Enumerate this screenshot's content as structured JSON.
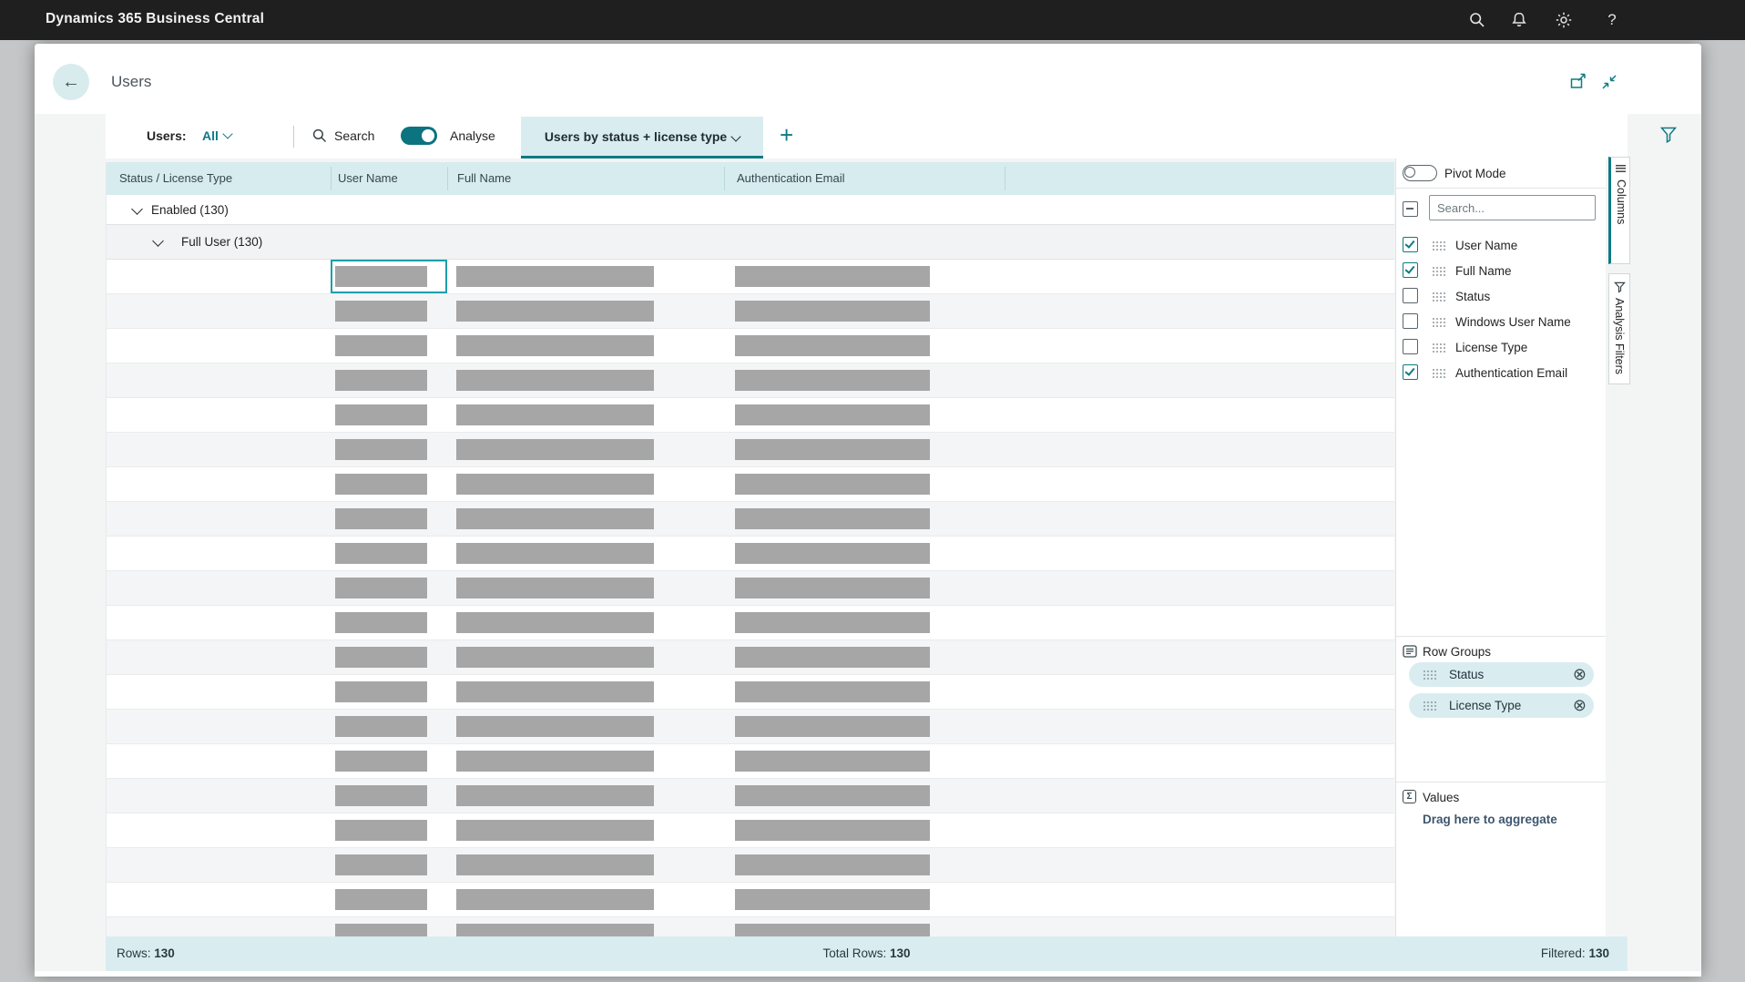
{
  "colors": {
    "accent": "#0e7a84",
    "accent_light": "#d9edf0",
    "topbar_bg": "#1f1f1f",
    "selection_border": "#1d9faa",
    "placeholder_bar": "#a6a6a6"
  },
  "icons": {
    "back": "←",
    "remove": "⊗",
    "sigma": "Σ"
  },
  "topbar": {
    "title": "Dynamics 365 Business Central"
  },
  "page": {
    "title": "Users"
  },
  "toolbar": {
    "scope_label": "Users:",
    "scope_value": "All",
    "search_label": "Search",
    "analyze_label": "Analyse",
    "analysis_tab_label": "Users by status + license type",
    "add_tab_label": "+"
  },
  "table": {
    "columns": [
      "Status / License Type",
      "User Name",
      "Full Name",
      "Authentication Email"
    ],
    "groups": [
      {
        "level": 1,
        "label": "Enabled (130)"
      },
      {
        "level": 2,
        "label": "Full User (130)"
      }
    ],
    "placeholder_row_count": 20
  },
  "panel": {
    "pivot_label": "Pivot Mode",
    "search_placeholder": "Search...",
    "fields": [
      {
        "label": "User Name",
        "checked": true
      },
      {
        "label": "Full Name",
        "checked": true
      },
      {
        "label": "Status",
        "checked": false
      },
      {
        "label": "Windows User Name",
        "checked": false
      },
      {
        "label": "License Type",
        "checked": false
      },
      {
        "label": "Authentication Email",
        "checked": true
      }
    ],
    "row_groups": {
      "title": "Row Groups",
      "items": [
        "Status",
        "License Type"
      ]
    },
    "values": {
      "title": "Values",
      "hint": "Drag here to aggregate"
    },
    "tabs": [
      {
        "label": "Columns",
        "active": true
      },
      {
        "label": "Analysis Filters",
        "active": false
      }
    ]
  },
  "footer": {
    "rows_label": "Rows:",
    "rows_value": "130",
    "total_label": "Total Rows:",
    "total_value": "130",
    "filtered_label": "Filtered:",
    "filtered_value": "130"
  }
}
